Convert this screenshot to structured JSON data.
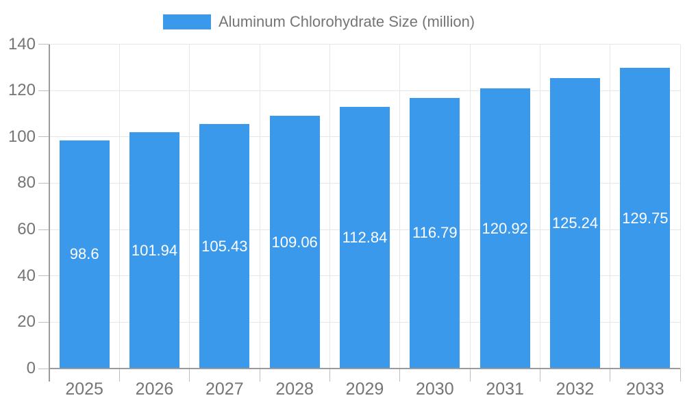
{
  "legend": {
    "label": "Aluminum Chlorohydrate Size (million)"
  },
  "chart_data": {
    "type": "bar",
    "title": "Aluminum Chlorohydrate Size (million)",
    "series_name": "Aluminum Chlorohydrate Size (million)",
    "categories": [
      "2025",
      "2026",
      "2027",
      "2028",
      "2029",
      "2030",
      "2031",
      "2032",
      "2033"
    ],
    "values": [
      98.6,
      101.94,
      105.43,
      109.06,
      112.84,
      116.79,
      120.92,
      125.24,
      129.75
    ],
    "bar_labels": [
      "98.6",
      "101.94",
      "105.43",
      "109.06",
      "112.84",
      "116.79",
      "120.92",
      "125.24",
      "129.75"
    ],
    "xlabel": "",
    "ylabel": "",
    "ylim": [
      0,
      140
    ],
    "yticks": [
      0,
      20,
      40,
      60,
      80,
      100,
      120,
      140
    ],
    "grid": true,
    "legend_position": "top",
    "colors": {
      "bar": "#3B99EC",
      "bar_label": "#FFFFFF",
      "grid": "#E6E6E6",
      "axis": "#9B9B9B",
      "tick": "#BDBDBD",
      "text": "#757575",
      "background": "#FFFFFF"
    }
  }
}
